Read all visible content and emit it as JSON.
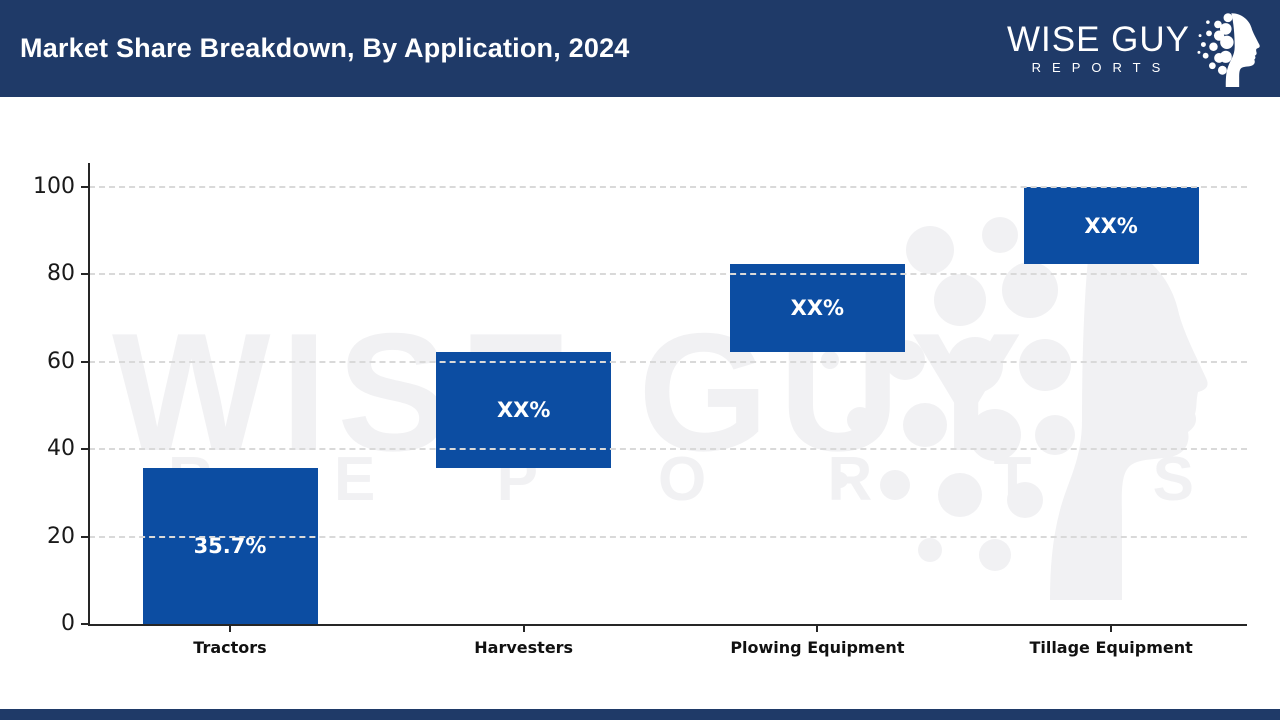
{
  "header": {
    "title": "Market Share Breakdown, By Application, 2024",
    "logo": {
      "line1": "WISE GUY",
      "line2": "REPORTS"
    },
    "bg_color": "#1f3a68"
  },
  "footer": {
    "bg_color": "#1f3a68"
  },
  "watermark": {
    "line1": "WISE GUY",
    "line2": "R E P O R T S",
    "color": "#f1f1f3"
  },
  "chart_data": {
    "type": "bar",
    "subtype": "waterfall-floating-bars",
    "title": "Market Share Breakdown, By Application, 2024",
    "categories": [
      "Tractors",
      "Harvesters",
      "Plowing Equipment",
      "Tillage Equipment"
    ],
    "segments": [
      {
        "category": "Tractors",
        "start": 0,
        "end": 35.7,
        "label": "35.7%"
      },
      {
        "category": "Harvesters",
        "start": 35.7,
        "end": 62.3,
        "label": "XX%"
      },
      {
        "category": "Plowing Equipment",
        "start": 62.3,
        "end": 82.3,
        "label": "XX%"
      },
      {
        "category": "Tillage Equipment",
        "start": 82.3,
        "end": 100,
        "label": "XX%"
      }
    ],
    "xlabel": "",
    "ylabel": "",
    "y_ticks": [
      0,
      20,
      40,
      60,
      80,
      100
    ],
    "ylim": [
      0,
      105
    ],
    "grid": true,
    "grid_style": "dashed",
    "legend": "none",
    "bar_color": "#0c4da2",
    "bar_label_color": "#ffffff",
    "grid_color": "#d9d9d9",
    "axis_color": "#262626"
  }
}
